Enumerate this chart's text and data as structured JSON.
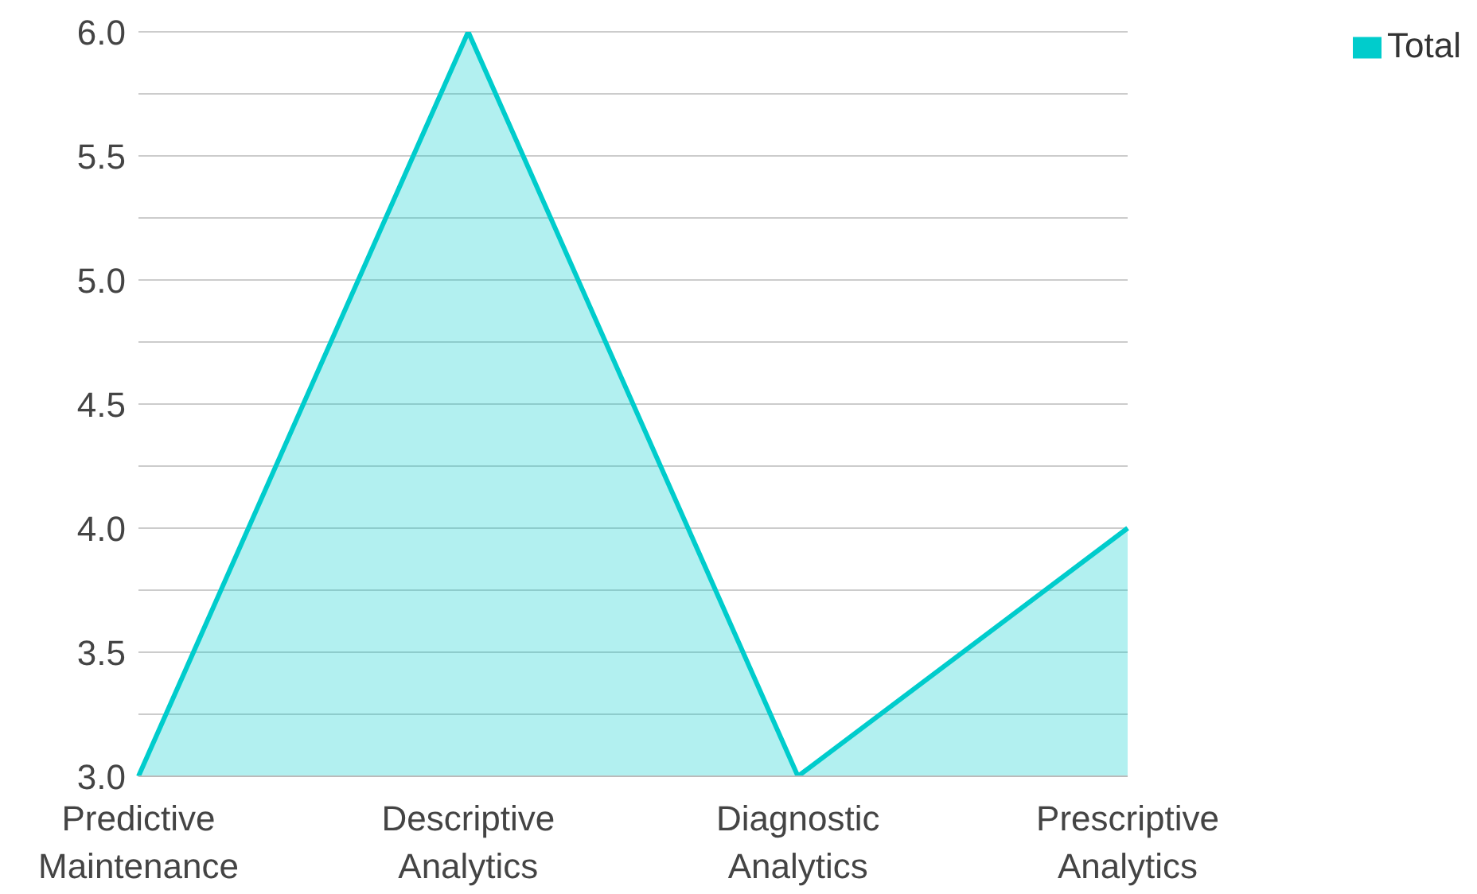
{
  "chart_data": {
    "type": "area",
    "categories": [
      "Predictive Maintenance",
      "Descriptive Analytics",
      "Diagnostic Analytics",
      "Prescriptive Analytics"
    ],
    "series": [
      {
        "name": "Total",
        "color": "#00cccc",
        "values": [
          3,
          6,
          3,
          4
        ]
      }
    ],
    "ylim": [
      3,
      6
    ],
    "yticks": [
      {
        "value": 3,
        "label": "3.0"
      },
      {
        "value": 3.25,
        "label": null
      },
      3.5,
      {
        "value": 3.75,
        "label": null
      },
      {
        "value": 4,
        "label": "4.0"
      },
      {
        "value": 4.25,
        "label": null
      },
      4.5,
      {
        "value": 4.75,
        "label": null
      },
      {
        "value": 5,
        "label": "5.0"
      },
      {
        "value": 5.25,
        "label": null
      },
      5.5,
      {
        "value": 5.75,
        "label": null
      },
      {
        "value": 6,
        "label": "6.0"
      }
    ],
    "grid": "y",
    "legend": "top right"
  }
}
